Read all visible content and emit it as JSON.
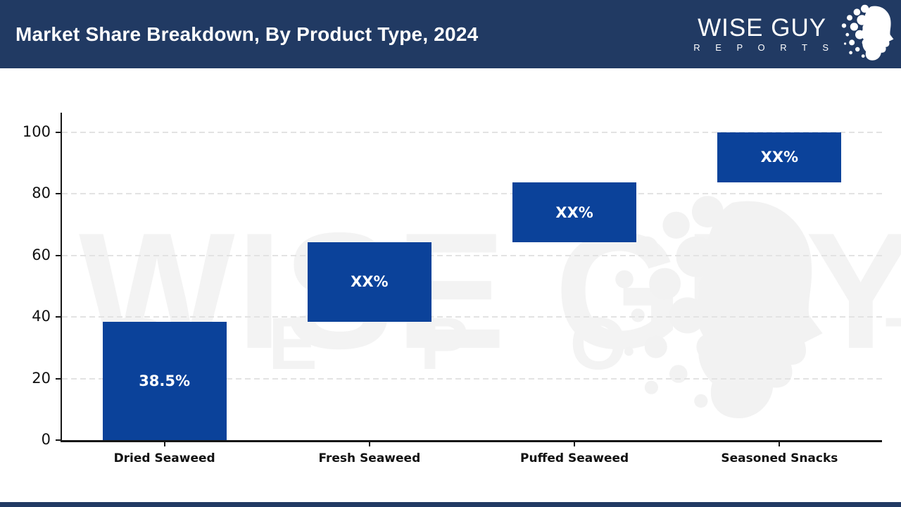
{
  "header": {
    "title": "Market Share Breakdown, By Product Type, 2024",
    "logo": {
      "name": "WISE GUY",
      "subtitle": "R E P O R T S",
      "head_icon": "dotted-head-profile-icon"
    }
  },
  "watermark": {
    "line1": "WISE GUY",
    "line2": "R E P O R T S",
    "head_icon": "dotted-head-profile-watermark"
  },
  "colors": {
    "header_navy": "#213a63",
    "footer_navy": "#213a63",
    "bar_blue": "#0b429a",
    "bar_label_white": "#ffffff",
    "grid_gray": "#e3e3e3",
    "axis_black": "#161616",
    "watermark_gray": "#f3f3f3"
  },
  "chart_data": {
    "type": "bar",
    "subtype": "waterfall-floating-bars",
    "title": "Market Share Breakdown, By Product Type, 2024",
    "xlabel": "",
    "ylabel": "",
    "categories": [
      "Dried Seaweed",
      "Fresh Seaweed",
      "Puffed Seaweed",
      "Seasoned Snacks"
    ],
    "segments": [
      {
        "category": "Dried Seaweed",
        "start": 0,
        "end": 38.5,
        "label": "38.5%"
      },
      {
        "category": "Fresh Seaweed",
        "start": 38.5,
        "end": 64.2,
        "label": "XX%"
      },
      {
        "category": "Puffed Seaweed",
        "start": 64.2,
        "end": 83.6,
        "label": "XX%"
      },
      {
        "category": "Seasoned Snacks",
        "start": 83.6,
        "end": 100,
        "label": "XX%"
      }
    ],
    "yticks": [
      0,
      20,
      40,
      60,
      80,
      100
    ],
    "ylim": [
      0,
      106
    ],
    "grid": "horizontal-dashed",
    "legend": "none"
  }
}
